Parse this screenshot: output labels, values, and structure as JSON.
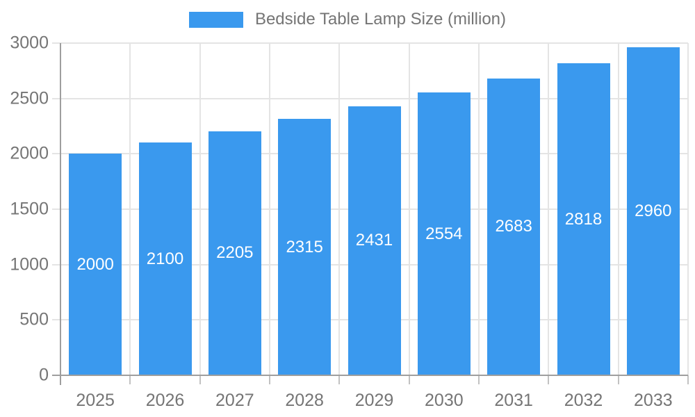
{
  "chart_data": {
    "type": "bar",
    "title": "Bedside Table Lamp Size (million)",
    "legend": {
      "label": "Bedside Table Lamp Size (million)",
      "position": "top"
    },
    "categories": [
      "2025",
      "2026",
      "2027",
      "2028",
      "2029",
      "2030",
      "2031",
      "2032",
      "2033"
    ],
    "values": [
      2000,
      2100,
      2205,
      2315,
      2431,
      2554,
      2683,
      2818,
      2960
    ],
    "xlabel": "",
    "ylabel": "",
    "ylim": [
      0,
      3000
    ],
    "yticks": [
      0,
      500,
      1000,
      1500,
      2000,
      2500,
      3000
    ],
    "grid": true,
    "bar_value_labels_visible": true,
    "colors": {
      "bar": "#3A99EE",
      "bar_label": "#FFFFFF",
      "axis_text": "#757575",
      "axis_line": "#9E9E9E",
      "gridline": "#E4E4E4",
      "background": "#FFFFFF"
    }
  }
}
